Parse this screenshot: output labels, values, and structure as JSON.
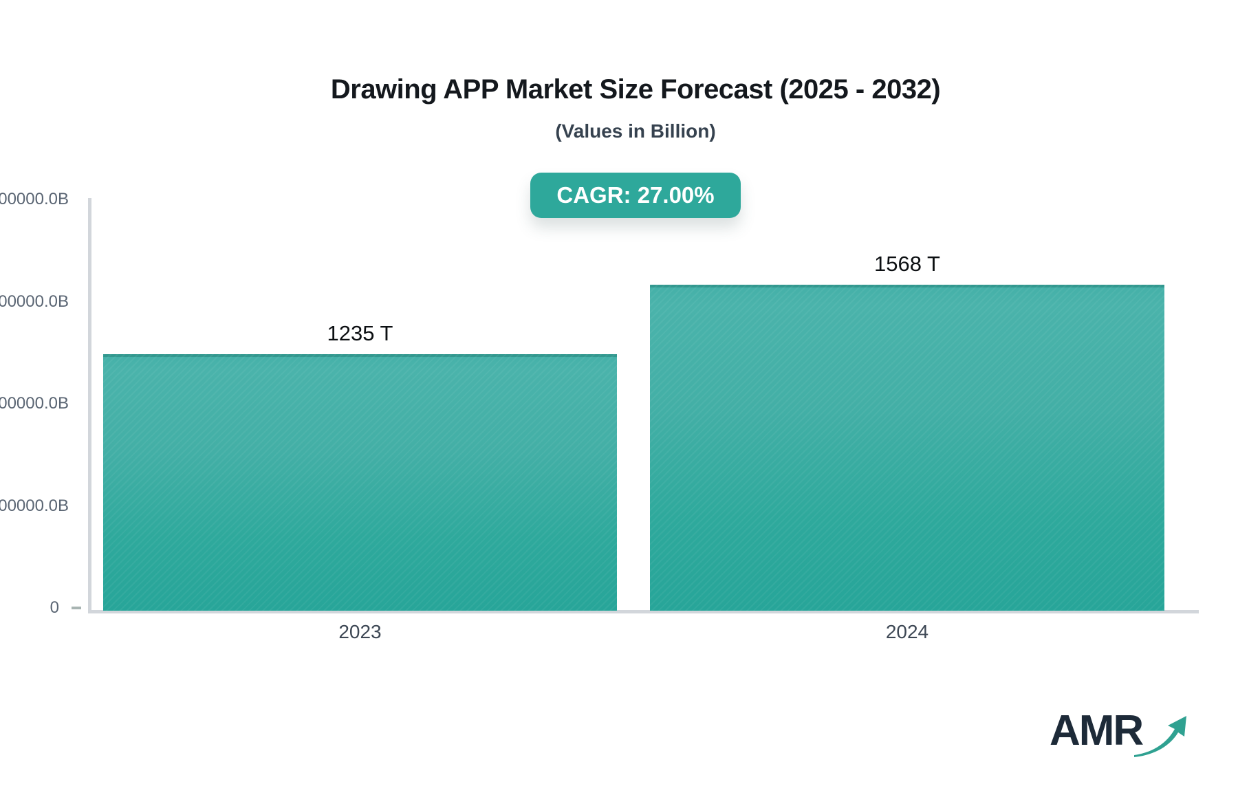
{
  "header": {
    "title": "Drawing APP Market Size Forecast (2025 - 2032)",
    "subtitle": "(Values in Billion)",
    "cagr_badge": "CAGR: 27.00%"
  },
  "chart_data": {
    "type": "bar",
    "title": "Drawing APP Market Size Forecast (2025 - 2032)",
    "subtitle": "(Values in Billion)",
    "cagr_percent": 27.0,
    "categories": [
      "2023",
      "2024"
    ],
    "values": [
      1235,
      1568
    ],
    "unit": "T",
    "bar_labels": [
      "1235 T",
      "1568 T"
    ],
    "y_axis": {
      "visible_tick_labels": [
        "00000.0B",
        "00000.0B",
        "00000.0B",
        "00000.0B",
        "0"
      ],
      "tick_step_billion": 500000,
      "range_billion": [
        0,
        2000000
      ],
      "note_labels_truncated_at_left_edge": true
    },
    "grid": false,
    "legend": false,
    "bar_color_top": "#4ab3ab",
    "bar_color_bottom": "#27a599"
  },
  "colors": {
    "badge_background": "#2ea89b",
    "badge_text": "#ffffff",
    "axis_line": "#d2d6db",
    "y_tick_text": "#5a6573",
    "x_label_text": "#3d4754",
    "title_text": "#14181d",
    "logo_text": "#1d2a38",
    "logo_arrow": "#2fa191"
  },
  "logo": {
    "text": "AMR"
  }
}
